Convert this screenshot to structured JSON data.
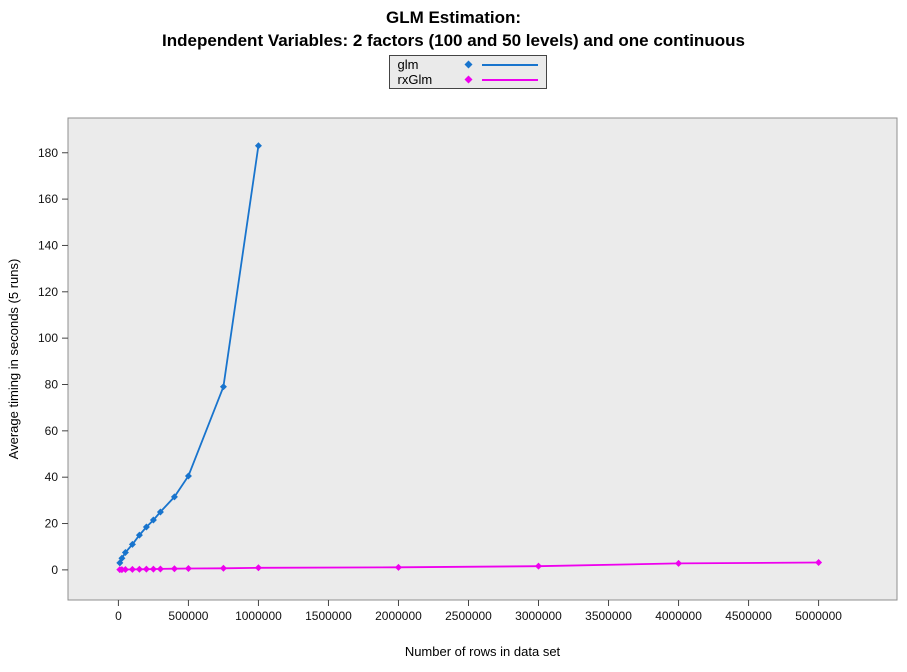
{
  "title": {
    "line1": "GLM Estimation:",
    "line2": "Independent Variables: 2 factors (100 and 50 levels) and one continuous"
  },
  "colors": {
    "plot_background": "#EBEBEB",
    "plot_border": "#8F8F8F",
    "tick": "#444444",
    "tick_label": "#111111",
    "glm_blue": "#1874CD",
    "rxglm_magenta": "#EE00EE"
  },
  "chart_data": {
    "type": "line",
    "title": "GLM Estimation: Independent Variables: 2 factors (100 and 50 levels) and one continuous",
    "xlabel": "Number of rows in data set",
    "ylabel": "Average timing in seconds (5 runs)",
    "marker": "diamond",
    "grid": false,
    "legend_position": "top-center",
    "xlim": [
      -360000,
      5560000
    ],
    "ylim": [
      -13,
      195
    ],
    "x_ticks": [
      0,
      500000,
      1000000,
      1500000,
      2000000,
      2500000,
      3000000,
      3500000,
      4000000,
      4500000,
      5000000
    ],
    "y_ticks": [
      0,
      20,
      40,
      60,
      80,
      100,
      120,
      140,
      160,
      180
    ],
    "series": [
      {
        "name": "glm",
        "color": "#1874CD",
        "x": [
          10000,
          25000,
          50000,
          100000,
          150000,
          200000,
          250000,
          300000,
          400000,
          500000,
          750000,
          1000000
        ],
        "y": [
          3,
          5,
          7.5,
          11,
          15,
          18.5,
          21.5,
          25,
          31.5,
          40.5,
          79,
          183
        ]
      },
      {
        "name": "rxGlm",
        "color": "#EE00EE",
        "x": [
          10000,
          25000,
          50000,
          100000,
          150000,
          200000,
          250000,
          300000,
          400000,
          500000,
          750000,
          1000000,
          2000000,
          3000000,
          4000000,
          5000000
        ],
        "y": [
          0.1,
          0.1,
          0.15,
          0.2,
          0.25,
          0.3,
          0.35,
          0.4,
          0.5,
          0.6,
          0.7,
          0.9,
          1.1,
          1.6,
          2.8,
          3.2
        ]
      }
    ]
  }
}
